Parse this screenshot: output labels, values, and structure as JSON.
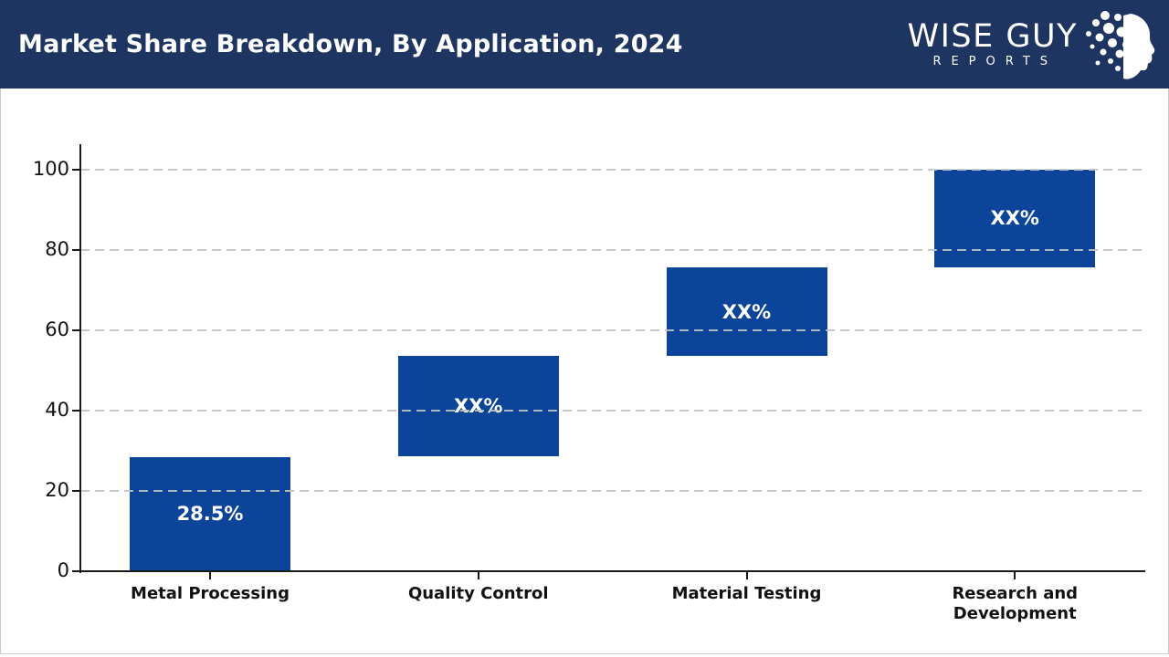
{
  "header": {
    "title": "Market Share Breakdown, By Application, 2024",
    "logo": {
      "line1": "WISE GUY",
      "line2": "REPORTS"
    }
  },
  "watermark": {
    "line1": "WISE GUY",
    "line2": "REPORTS"
  },
  "colors": {
    "header_bg": "#1F3561",
    "bar_blue": "#0B4499",
    "gridline": "#c9c9c9",
    "axis": "#1a1a1a",
    "watermark": "#f2f2f4"
  },
  "chart_data": {
    "type": "bar",
    "subtype": "floating-waterfall",
    "title": "Market Share Breakdown, By Application, 2024",
    "xlabel": "",
    "ylabel": "",
    "categories": [
      "Metal Processing",
      "Quality Control",
      "Material Testing",
      "Research and Development"
    ],
    "segments": [
      {
        "category": "Metal Processing",
        "start": 0,
        "end": 28.5,
        "label": "28.5%"
      },
      {
        "category": "Quality Control",
        "start": 28.5,
        "end": 53.5,
        "label": "XX%"
      },
      {
        "category": "Material Testing",
        "start": 53.5,
        "end": 75.7,
        "label": "XX%"
      },
      {
        "category": "Research and Development",
        "start": 75.7,
        "end": 100,
        "label": "XX%"
      }
    ],
    "yticks": [
      0,
      20,
      40,
      60,
      80,
      100
    ],
    "ylim": [
      0,
      106
    ],
    "grid": true,
    "grid_style": "dashed",
    "legend": "none",
    "bar_color": "#0B4499",
    "bar_label_color": "#ffffff"
  }
}
